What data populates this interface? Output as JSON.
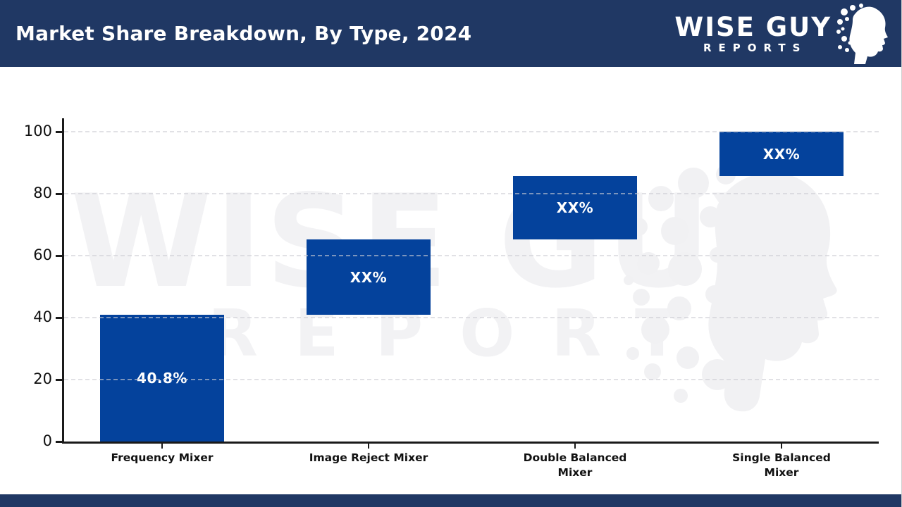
{
  "header": {
    "title": "Market Share Breakdown, By Type, 2024",
    "logo": {
      "line1": "WISE GUY",
      "line2": "REPORTS"
    }
  },
  "watermark": {
    "line1": "WISE GUY",
    "line2": "REPORTS"
  },
  "chart_data": {
    "type": "bar",
    "subtype": "floating-cumulative-breakdown",
    "title": "Market Share Breakdown, By Type, 2024",
    "categories": [
      "Frequency Mixer",
      "Image Reject Mixer",
      "Double Balanced Mixer",
      "Single Balanced Mixer"
    ],
    "segments": [
      {
        "category": "Frequency Mixer",
        "start": 0,
        "end": 40.8,
        "label": "40.8%"
      },
      {
        "category": "Image Reject Mixer",
        "start": 40.8,
        "end": 65.2,
        "label": "XX%"
      },
      {
        "category": "Double Balanced Mixer",
        "start": 65.2,
        "end": 85.7,
        "label": "XX%"
      },
      {
        "category": "Single Balanced Mixer",
        "start": 85.7,
        "end": 100,
        "label": "XX%"
      }
    ],
    "y_ticks": [
      0,
      20,
      40,
      60,
      80,
      100
    ],
    "ylim": [
      0,
      104
    ],
    "xlabel": "",
    "ylabel": "",
    "grid": "horizontal-dashed",
    "legend": "none",
    "bar_color": "#04429c",
    "bar_label_color": "#ffffff"
  },
  "colors": {
    "header_bg": "#203864",
    "footer_bg": "#203864",
    "bar": "#04429c",
    "watermark": "#f2f2f4",
    "axis": "#1a1a1a"
  }
}
